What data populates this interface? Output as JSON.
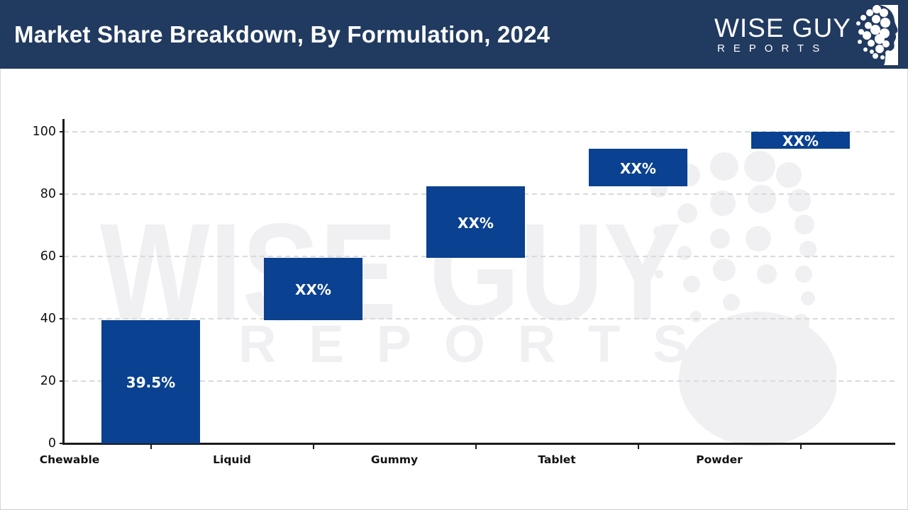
{
  "header": {
    "title": "Market Share Breakdown, By Formulation, 2024",
    "logo": {
      "line1": "WISE GUY",
      "line2": "REPORTS"
    }
  },
  "watermark": {
    "line1": "WISE GUY",
    "line2": "REPORTS"
  },
  "colors": {
    "header_bg": "#213a60",
    "header_text": "#ffffff",
    "bar": "#0a4190",
    "bar_label": "#ffffff",
    "gridline": "#d9d9d9",
    "axis": "#1c1c1c",
    "tick_label": "#111111",
    "watermark": "#f0f0f3",
    "page_border": "#d8d8d8"
  },
  "chart_data": {
    "type": "bar",
    "subtype": "waterfall",
    "title": "Market Share Breakdown, By Formulation, 2024",
    "categories": [
      "Chewable",
      "Liquid",
      "Gummy",
      "Tablet",
      "Powder"
    ],
    "series": [
      {
        "name": "Market Share (%)",
        "segments": [
          {
            "category": "Chewable",
            "start": 0,
            "end": 39.5,
            "value": 39.5,
            "label": "39.5%"
          },
          {
            "category": "Liquid",
            "start": 39.5,
            "end": 59.5,
            "value": 20,
            "label": "XX%"
          },
          {
            "category": "Gummy",
            "start": 59.5,
            "end": 82.5,
            "value": 23,
            "label": "XX%"
          },
          {
            "category": "Tablet",
            "start": 82.5,
            "end": 94.5,
            "value": 12,
            "label": "XX%"
          },
          {
            "category": "Powder",
            "start": 94.5,
            "end": 100,
            "value": 5.5,
            "label": "XX%"
          }
        ]
      }
    ],
    "xlabel": "",
    "ylabel": "",
    "ylim": [
      0,
      105
    ],
    "yticks": [
      0,
      20,
      40,
      60,
      80,
      100
    ],
    "grid": "horizontal-dashed",
    "legend": "none",
    "bar_color": "#0a4190",
    "bar_label_color": "#ffffff"
  }
}
